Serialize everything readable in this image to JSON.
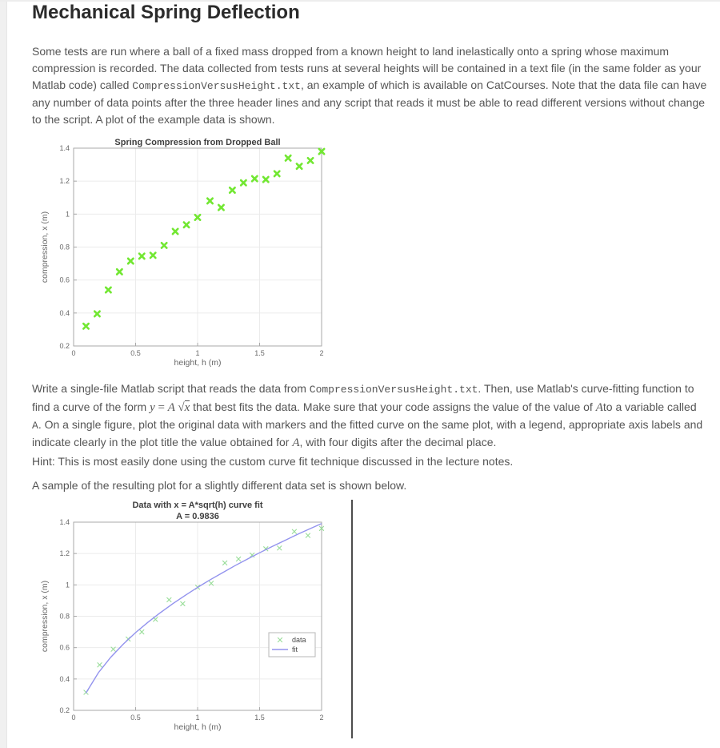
{
  "page": {
    "title": "Mechanical Spring Deflection",
    "intro_parts": [
      {
        "t": "Some tests are run where a ball of a fixed mass dropped from a known height to land inelastically onto a spring whose maximum compression is recorded. The data collected from tests runs at several heights will be contained in a text file (in the same folder as your Matlab code) called "
      },
      {
        "t": "CompressionVersusHeight.txt",
        "s": "c"
      },
      {
        "t": ", an example of which is available on CatCourses. Note that the data file can have any number of data points after the three header lines and any script that reads it must be able to read different versions without change to the script. A plot of the example data is shown."
      }
    ],
    "task_parts": [
      {
        "t": "Write a single-file Matlab script that reads the data from "
      },
      {
        "t": "CompressionVersusHeight.txt",
        "s": "c"
      },
      {
        "t": ". Then, use Matlab's curve-fitting function to find a curve of the form "
      },
      {
        "t": "y",
        "s": "mi"
      },
      {
        "t": " = ",
        "s": "m"
      },
      {
        "t": "A ",
        "s": "mi"
      },
      {
        "t": "√",
        "s": "m"
      },
      {
        "t": "x",
        "s": "sqrt"
      },
      {
        "t": " that best fits the data. Make sure that your code assigns the value of the value of "
      },
      {
        "t": "A",
        "s": "mi"
      },
      {
        "t": "to a variable called "
      },
      {
        "t": "A",
        "s": "c"
      },
      {
        "t": ". On a single figure, plot the original data with markers and the fitted curve on the same plot, with a legend, appropriate axis labels and indicate clearly in the plot title the value obtained for "
      },
      {
        "t": "A",
        "s": "mi"
      },
      {
        "t": ", with four digits after the decimal place."
      }
    ],
    "hint": "Hint: This is most easily done using the custom curve fit technique discussed in the lecture notes.",
    "sample_note": "A sample of the resulting plot for a slightly different data set is shown below."
  },
  "colors": {
    "data_marker_bold": "#72e732",
    "data_marker_thin": "#99dd99",
    "fit_line": "#9393ee",
    "divider": "#4d4d4d",
    "axis": "#a9a9a9",
    "grid": "#ebebeb",
    "tick_text": "#696969",
    "title_text": "#3f3f3f"
  },
  "chart_data": [
    {
      "type": "scatter",
      "title": "Spring Compression from Dropped Ball",
      "xlabel": "height, h (m)",
      "ylabel": "compression, x (m)",
      "xlim": [
        0,
        2
      ],
      "ylim": [
        0.2,
        1.4
      ],
      "xticks": [
        0,
        0.5,
        1,
        1.5,
        2
      ],
      "yticks": [
        0.2,
        0.4,
        0.6,
        0.8,
        1,
        1.2,
        1.4
      ],
      "grid": true,
      "series": [
        {
          "name": "data",
          "kind": "scatter",
          "marker": "x-bold",
          "color": "#72e732",
          "x": [
            0.1,
            0.19,
            0.28,
            0.37,
            0.46,
            0.55,
            0.64,
            0.73,
            0.82,
            0.91,
            1.0,
            1.1,
            1.19,
            1.28,
            1.37,
            1.46,
            1.55,
            1.64,
            1.73,
            1.82,
            1.91,
            2.0
          ],
          "y": [
            0.32,
            0.395,
            0.54,
            0.65,
            0.715,
            0.745,
            0.75,
            0.81,
            0.895,
            0.935,
            0.98,
            1.08,
            1.04,
            1.145,
            1.19,
            1.215,
            1.21,
            1.245,
            1.34,
            1.29,
            1.325,
            1.38
          ]
        }
      ]
    },
    {
      "type": "scatter+line",
      "title": "Data with x = A*sqrt(h) curve fit",
      "subtitle": "A = 0.9836",
      "A": 0.9836,
      "xlabel": "height, h (m)",
      "ylabel": "compression, x (m)",
      "xlim": [
        0,
        2
      ],
      "ylim": [
        0.2,
        1.4
      ],
      "xticks": [
        0,
        0.5,
        1,
        1.5,
        2
      ],
      "yticks": [
        0.2,
        0.4,
        0.6,
        0.8,
        1,
        1.2,
        1.4
      ],
      "grid": true,
      "series": [
        {
          "name": "data",
          "kind": "scatter",
          "marker": "x-thin",
          "color": "#99dd99",
          "x": [
            0.1,
            0.21,
            0.32,
            0.44,
            0.55,
            0.66,
            0.77,
            0.88,
            1.0,
            1.11,
            1.22,
            1.33,
            1.44,
            1.55,
            1.66,
            1.78,
            1.89,
            2.0
          ],
          "y": [
            0.315,
            0.49,
            0.59,
            0.655,
            0.7,
            0.78,
            0.905,
            0.88,
            0.985,
            1.01,
            1.14,
            1.165,
            1.19,
            1.23,
            1.235,
            1.34,
            1.315,
            1.36
          ]
        },
        {
          "name": "fit",
          "kind": "line",
          "color": "#9393ee",
          "x": [
            0.1,
            0.2,
            0.3,
            0.4,
            0.5,
            0.6,
            0.7,
            0.8,
            0.9,
            1.0,
            1.1,
            1.2,
            1.3,
            1.4,
            1.5,
            1.6,
            1.7,
            1.8,
            1.9,
            2.0
          ],
          "y": [
            0.311,
            0.44,
            0.539,
            0.622,
            0.696,
            0.762,
            0.823,
            0.88,
            0.933,
            0.984,
            1.032,
            1.077,
            1.122,
            1.164,
            1.205,
            1.244,
            1.282,
            1.32,
            1.356,
            1.391
          ]
        }
      ],
      "legend": {
        "entries": [
          {
            "label": "data",
            "series": 0
          },
          {
            "label": "fit",
            "series": 1
          }
        ],
        "position": "right-middle"
      }
    }
  ]
}
